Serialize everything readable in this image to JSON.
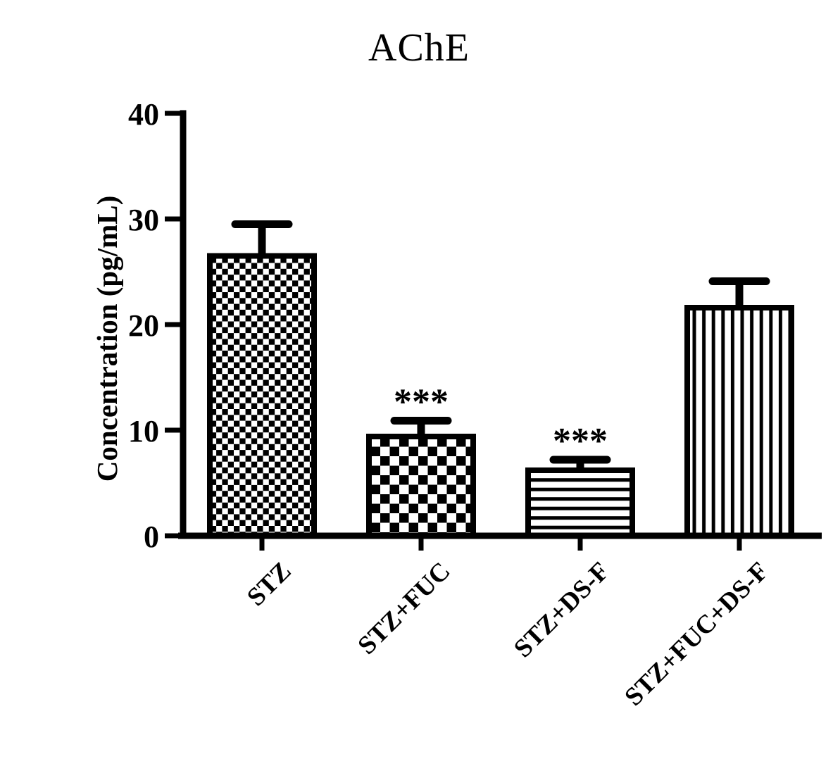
{
  "figure": {
    "title": "AChE"
  },
  "chart_data": {
    "type": "bar",
    "title": "AChE",
    "xlabel": "",
    "ylabel": "Concentration (pg/mL)",
    "ylim": [
      0,
      40
    ],
    "yticks": [
      0,
      10,
      20,
      30,
      40
    ],
    "grid": false,
    "legend": "none",
    "categories": [
      "STZ",
      "STZ+FUC",
      "STZ+DS-F",
      "STZ+FUC+DS-F"
    ],
    "values": [
      26.5,
      9.4,
      6.2,
      21.6
    ],
    "errors_plus": [
      3.0,
      1.5,
      1.0,
      2.5
    ],
    "significance": [
      "",
      "***",
      "***",
      ""
    ],
    "bar_patterns": [
      "checker-fine",
      "checker-coarse",
      "horizontal-stripes",
      "vertical-stripes"
    ],
    "bar_outline_color": "#000000",
    "bar_fill_background": "#ffffff",
    "axis_color": "#000000",
    "background_color": "#ffffff"
  }
}
